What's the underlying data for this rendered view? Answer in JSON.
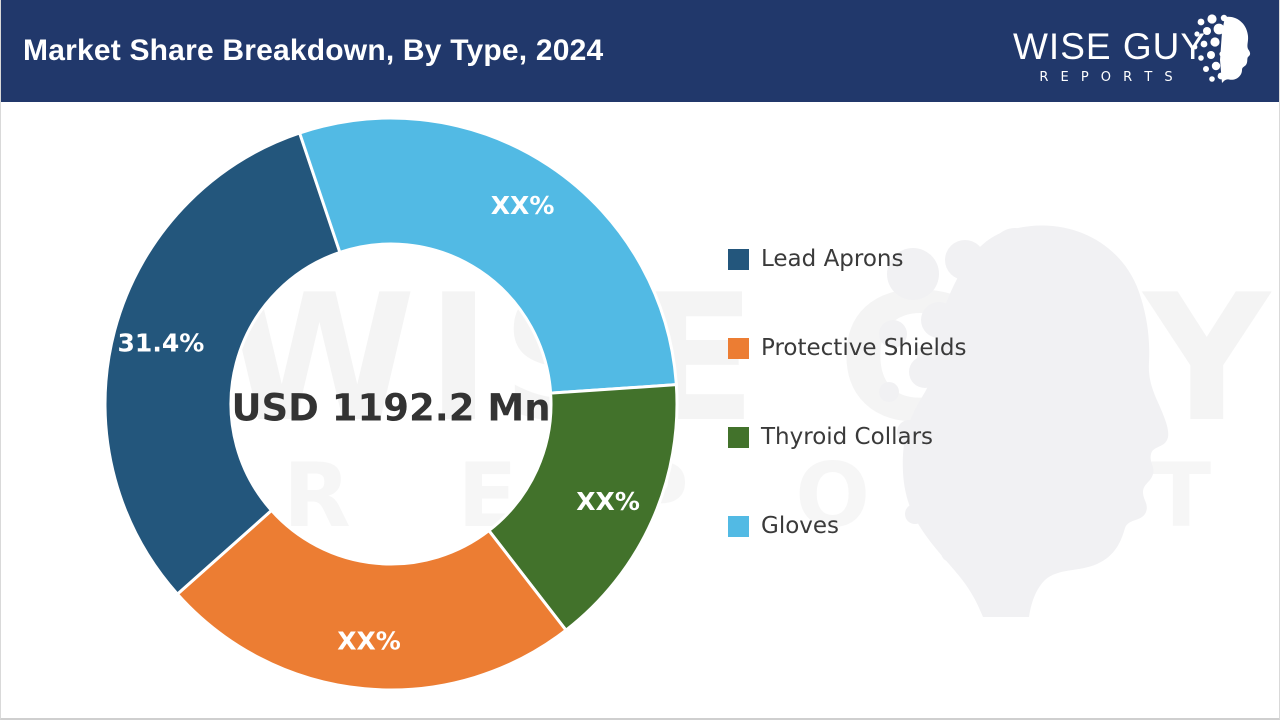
{
  "header": {
    "bg": "#21386B",
    "title": "Market Share Breakdown, By Type, 2024",
    "logo": {
      "line1": "WISE GUY",
      "line2": "R E P O R T S"
    }
  },
  "watermark": {
    "line1": "WISE GUY",
    "line2": "R E P O R T S"
  },
  "chart_data": {
    "type": "pie",
    "subtype": "donut",
    "title": "Market Share Breakdown, By Type, 2024",
    "center_label": "USD 1192.2 Mn",
    "start_angle_deg": -19,
    "segments": [
      {
        "name": "Gloves",
        "label": "XX%",
        "sweep_percent": 29.2,
        "color": "#52BAE4"
      },
      {
        "name": "Thyroid Collars",
        "label": "XX%",
        "sweep_percent": 15.6,
        "color": "#42722B"
      },
      {
        "name": "Protective Shields",
        "label": "XX%",
        "sweep_percent": 23.9,
        "color": "#EC7D33"
      },
      {
        "name": "Lead Aprons",
        "label": "31.4%",
        "sweep_percent": 31.4,
        "color": "#23567C"
      }
    ],
    "legend_position": "right"
  },
  "legend": {
    "items": [
      {
        "label": "Lead Aprons",
        "color": "#23567C"
      },
      {
        "label": "Protective Shields",
        "color": "#EC7D33"
      },
      {
        "label": "Thyroid Collars",
        "color": "#42722B"
      },
      {
        "label": "Gloves",
        "color": "#52BAE4"
      }
    ]
  }
}
